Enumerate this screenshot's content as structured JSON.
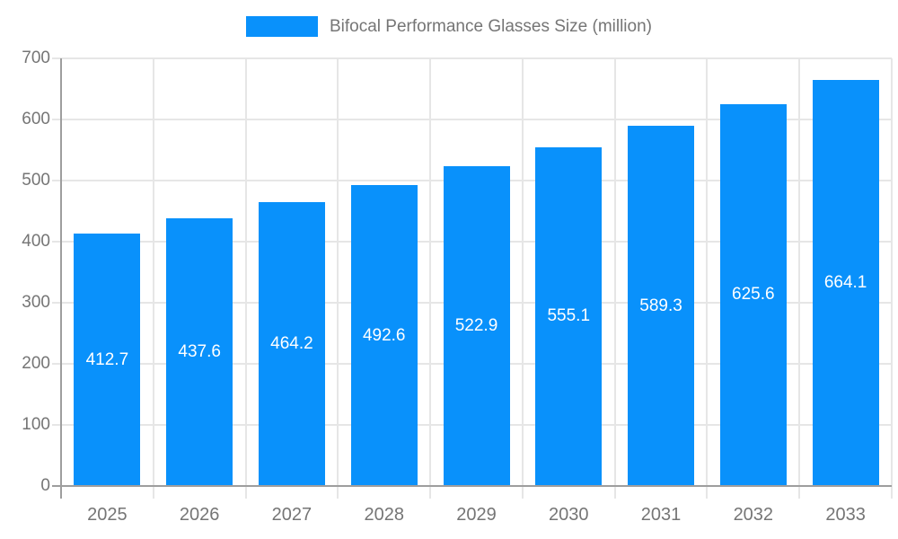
{
  "legend": {
    "label": "Bifocal Performance Glasses Size (million)"
  },
  "chart_data": {
    "type": "bar",
    "title": "Bifocal Performance Glasses Size (million)",
    "series_name": "Bifocal Performance Glasses Size (million)",
    "categories": [
      "2025",
      "2026",
      "2027",
      "2028",
      "2029",
      "2030",
      "2031",
      "2032",
      "2033"
    ],
    "values": [
      412.7,
      437.6,
      464.2,
      492.6,
      522.9,
      555.1,
      589.3,
      625.6,
      664.1
    ],
    "value_labels": [
      "412.7",
      "437.6",
      "464.2",
      "492.6",
      "522.9",
      "555.1",
      "589.3",
      "625.6",
      "664.1"
    ],
    "xlabel": "",
    "ylabel": "",
    "ylim": [
      0,
      700
    ],
    "yticks": [
      0,
      100,
      200,
      300,
      400,
      500,
      600,
      700
    ],
    "grid": true,
    "legend_position": "top-center",
    "colors": {
      "bar": "#0991fb",
      "gridline": "#e6e6e6",
      "axis": "#9e9e9e",
      "axis_text": "#757575",
      "value_label": "#ffffff"
    }
  }
}
